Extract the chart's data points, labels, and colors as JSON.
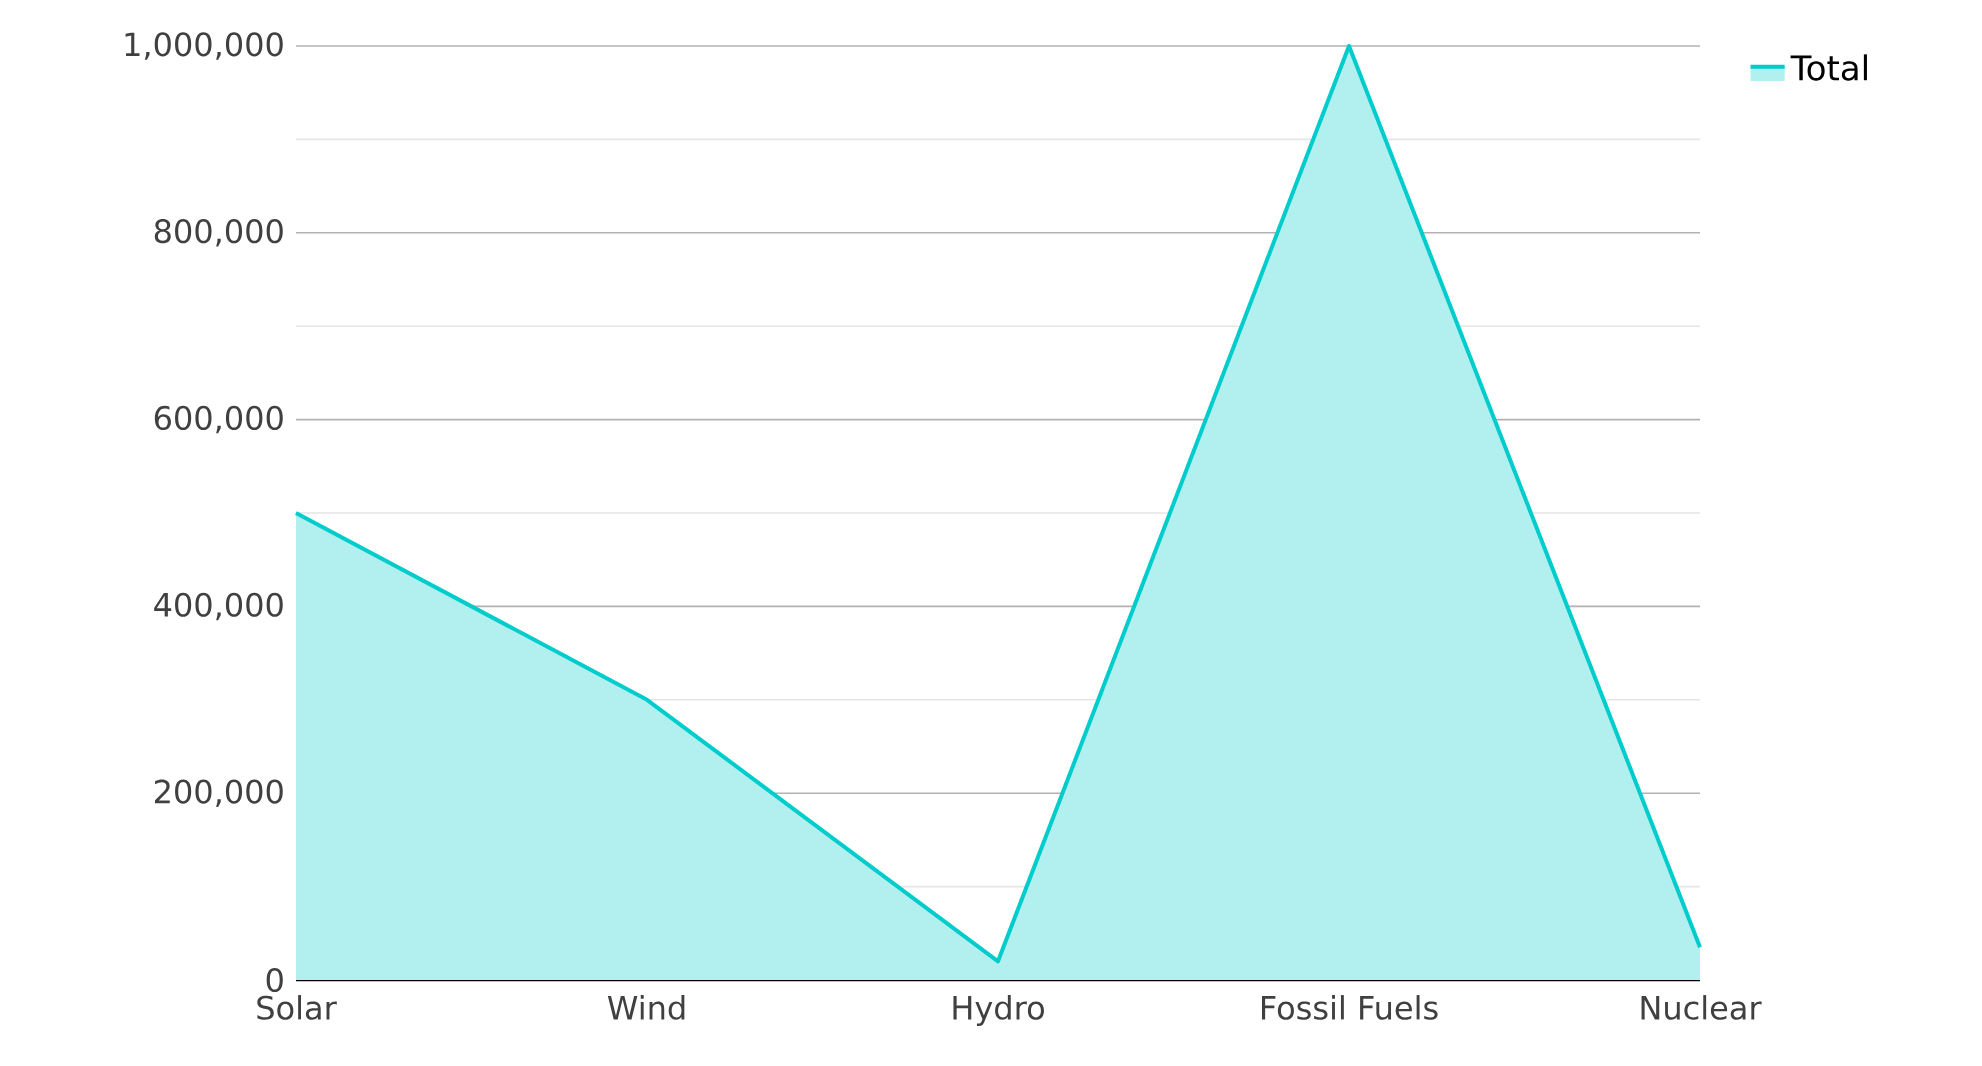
{
  "chart_data": {
    "type": "area",
    "categories": [
      "Solar",
      "Wind",
      "Hydro",
      "Fossil Fuels",
      "Nuclear"
    ],
    "series": [
      {
        "name": "Total",
        "color": "#00cccc",
        "values": [
          500000,
          300000,
          20000,
          1000000,
          35000
        ]
      }
    ],
    "ylim": [
      0,
      1000000
    ],
    "yticks": [
      0,
      {
        "value": 200000,
        "label": "200,000"
      },
      {
        "value": 400000,
        "label": "400,000"
      },
      {
        "value": 600000,
        "label": "600,000"
      },
      {
        "value": 800000,
        "label": "800,000"
      },
      {
        "value": 1000000,
        "label": "1,000,000"
      }
    ],
    "grid": "y",
    "legend": "top right"
  }
}
